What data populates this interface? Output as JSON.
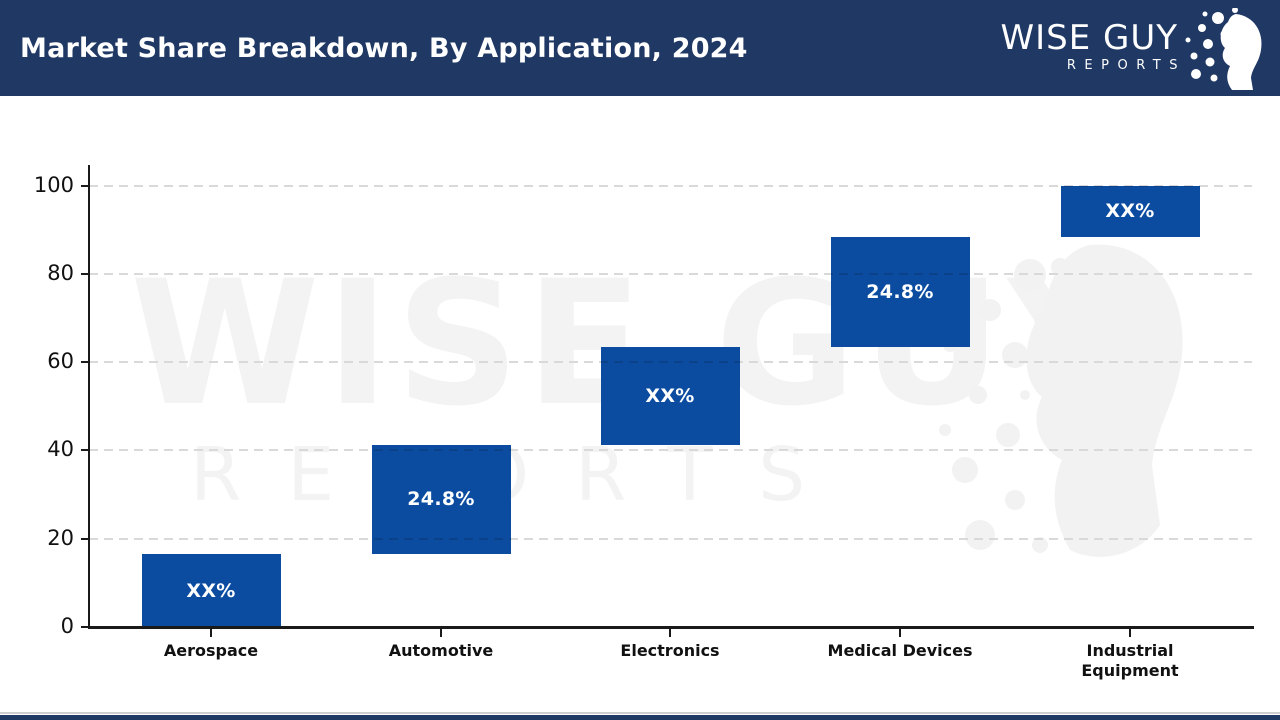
{
  "header": {
    "title": "Market Share Breakdown, By Application, 2024",
    "logo": {
      "line1": "WISE GUY",
      "line2": "REPORTS"
    }
  },
  "watermark": {
    "line1": "WISE GUY",
    "line2": "REPORTS"
  },
  "chart_data": {
    "type": "bar",
    "subtype": "waterfall-floating-bars",
    "title": "Market Share Breakdown, By Application, 2024",
    "categories": [
      "Aerospace",
      "Automotive",
      "Electronics",
      "Medical Devices",
      "Industrial Equipment"
    ],
    "segments": [
      {
        "category": "Aerospace",
        "start": 0,
        "end": 16.5,
        "label": "XX%"
      },
      {
        "category": "Automotive",
        "start": 16.5,
        "end": 41.3,
        "label": "24.8%"
      },
      {
        "category": "Electronics",
        "start": 41.3,
        "end": 63.5,
        "label": "XX%"
      },
      {
        "category": "Medical Devices",
        "start": 63.5,
        "end": 88.3,
        "label": "24.8%"
      },
      {
        "category": "Industrial Equipment",
        "start": 88.3,
        "end": 100,
        "label": "XX%"
      }
    ],
    "xlabel": "",
    "ylabel": "",
    "ylim": [
      0,
      100
    ],
    "yticks": [
      0,
      20,
      40,
      60,
      80,
      100
    ],
    "grid": "horizontal-dashed",
    "legend": "none",
    "bar_color": "#0b4ca0",
    "bar_label_color": "#ffffff"
  },
  "colors": {
    "header_bg": "#1f3864",
    "footer_bg": "#1f3864",
    "bar": "#0b4ca0",
    "gridline": "#d9d9d9",
    "axis": "#1a1a1a",
    "watermark": "#f3f3f3"
  }
}
